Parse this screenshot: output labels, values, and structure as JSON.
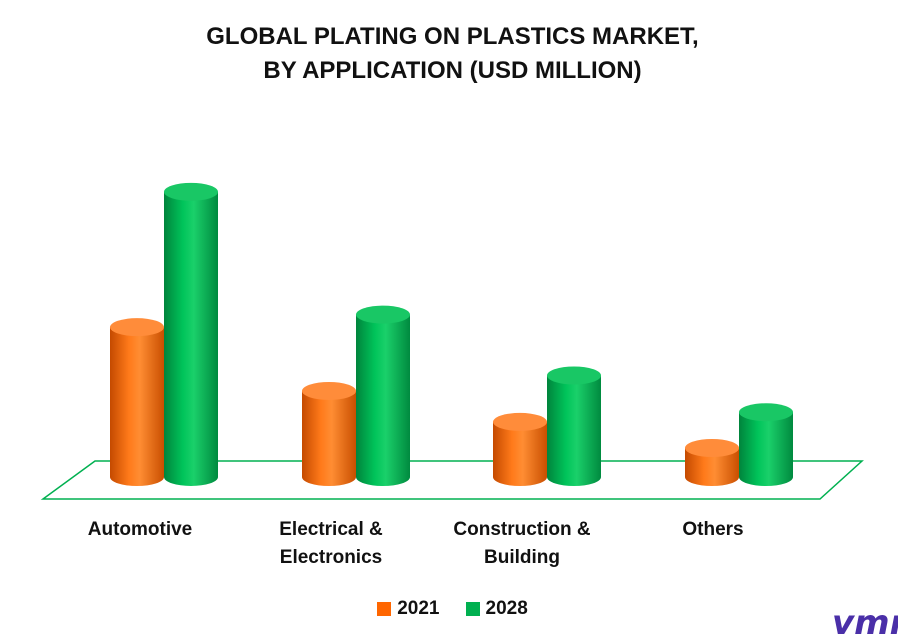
{
  "title_lines": [
    "GLOBAL PLATING ON PLASTICS MARKET,",
    "BY APPLICATION (USD MILLION)"
  ],
  "colors": {
    "2021": "#ff6600",
    "2028": "#00b050",
    "floor": "#00b050",
    "logo": "#4a2fa8"
  },
  "logo": {
    "text": "vmr"
  },
  "chart_data": {
    "type": "bar",
    "title": "GLOBAL PLATING ON PLASTICS MARKET, BY APPLICATION (USD MILLION)",
    "categories": [
      "Automotive",
      "Electrical & Electronics",
      "Construction & Building",
      "Others"
    ],
    "category_lines": [
      [
        "Automotive"
      ],
      [
        "Electrical &",
        "Electronics"
      ],
      [
        "Construction &",
        "Building"
      ],
      [
        "Others"
      ]
    ],
    "series": [
      {
        "name": "2021",
        "values": [
          155,
          89,
          57,
          30
        ]
      },
      {
        "name": "2028",
        "values": [
          295,
          168,
          105,
          67
        ]
      }
    ],
    "ylim": [
      0,
      300
    ],
    "legend_position": "bottom",
    "grid": false
  }
}
